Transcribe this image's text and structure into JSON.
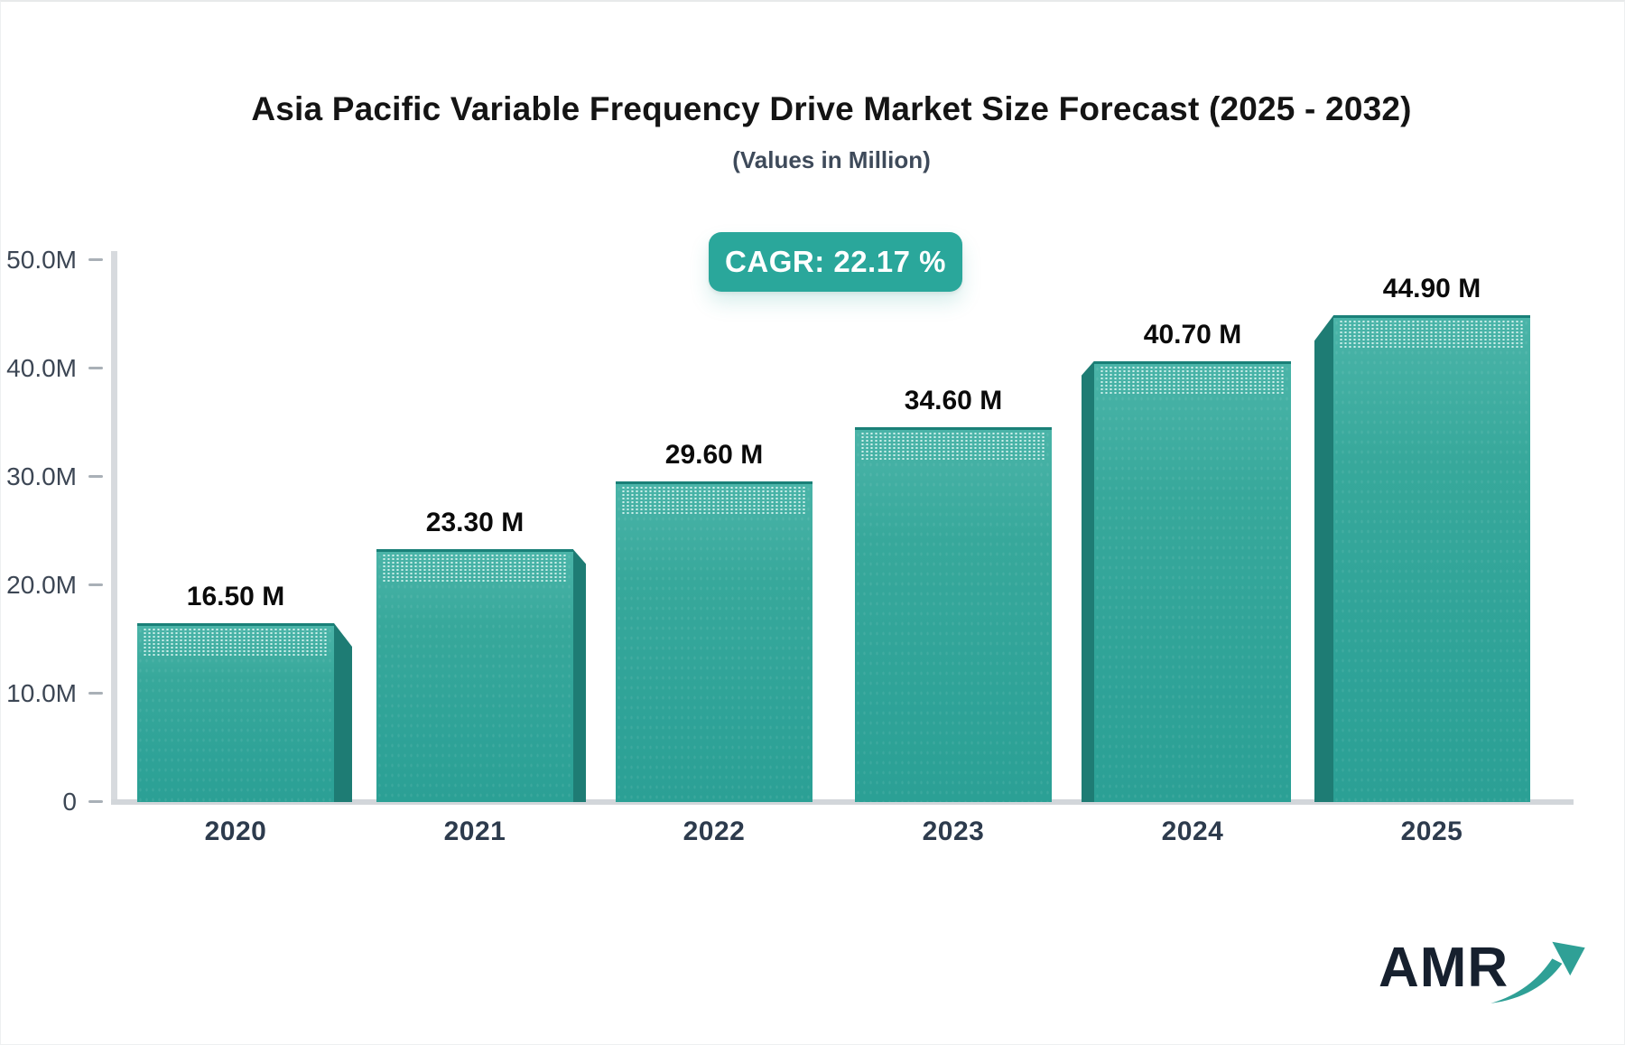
{
  "header": {
    "title": "Asia Pacific Variable Frequency Drive Market Size Forecast (2025 - 2032)",
    "subtitle": "(Values in Million)",
    "cagr_badge": "CAGR: 22.17 %"
  },
  "chart_data": {
    "type": "bar",
    "title": "Asia Pacific Variable Frequency Drive Market Size Forecast (2025 - 2032)",
    "subtitle": "(Values in Million)",
    "cagr_percent": 22.17,
    "categories": [
      "2020",
      "2021",
      "2022",
      "2023",
      "2024",
      "2025"
    ],
    "values": [
      16.5,
      23.3,
      29.6,
      34.6,
      40.7,
      44.9
    ],
    "bar_labels": [
      "16.50 M",
      "23.30 M",
      "29.60 M",
      "34.60 M",
      "40.70 M",
      "44.90 M"
    ],
    "unit": "Million",
    "xlabel": "",
    "ylabel": "",
    "ylim": [
      0,
      50
    ],
    "y_ticks": [
      {
        "value": 50,
        "label": "50.0M"
      },
      {
        "value": 40,
        "label": "40.0M"
      },
      {
        "value": 30,
        "label": "30.0M"
      },
      {
        "value": 20,
        "label": "20.0M"
      },
      {
        "value": 10,
        "label": "10.0M"
      },
      {
        "value": 0,
        "label": "0"
      }
    ],
    "grid": false,
    "legend": false,
    "bar_color": "#31a89b",
    "bar_side_color": "#1e7c74",
    "badge_color": "#2aa79b"
  },
  "logo": {
    "text": "AMR"
  }
}
